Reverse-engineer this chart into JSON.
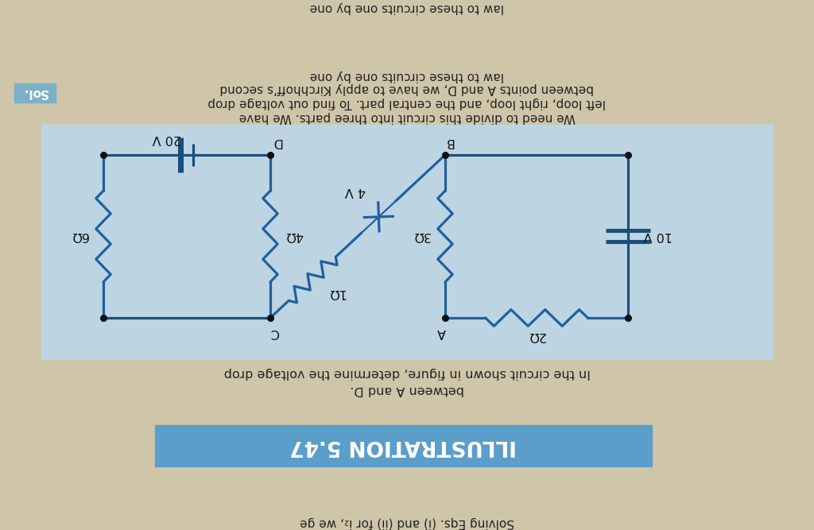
{
  "title": "ILLUSTRATION 5.47",
  "title_bg": "#5b9ec9",
  "title_text_color": "white",
  "problem_text_line1": "In the circuit shown in figure, determine the voltage drop",
  "problem_text_line2": "between A and D.",
  "solution_label": "Sol.",
  "sol_bg": "#7ab0c8",
  "solution_lines": [
    "We need to divide this circuit into three parts. We have",
    "left loop, right loop, and the central part. To find out voltage drop",
    "between points A and D, we have to apply Kirchhoff’s second",
    "law to these circuits one by one"
  ],
  "bottom_partial": "Solving Eqs. (i) and (ii) for i₂, we ge",
  "top_partial": "law to these circuits one by one",
  "circuit_bg": "#bdd5e2",
  "page_bg": "#cfc5a8",
  "lc": "#1c4e7a",
  "rc": "#2060a0",
  "components": {
    "R_6ohm": "6Ω",
    "R_4ohm": "4Ω",
    "R_1ohm": "1Ω",
    "R_3ohm": "3Ω",
    "R_2ohm": "2Ω",
    "V_20": "20 V",
    "V_4": "4 V",
    "V_10": "10 V",
    "node_B": "B",
    "node_D": "D",
    "node_A": "A",
    "node_C": "C"
  }
}
